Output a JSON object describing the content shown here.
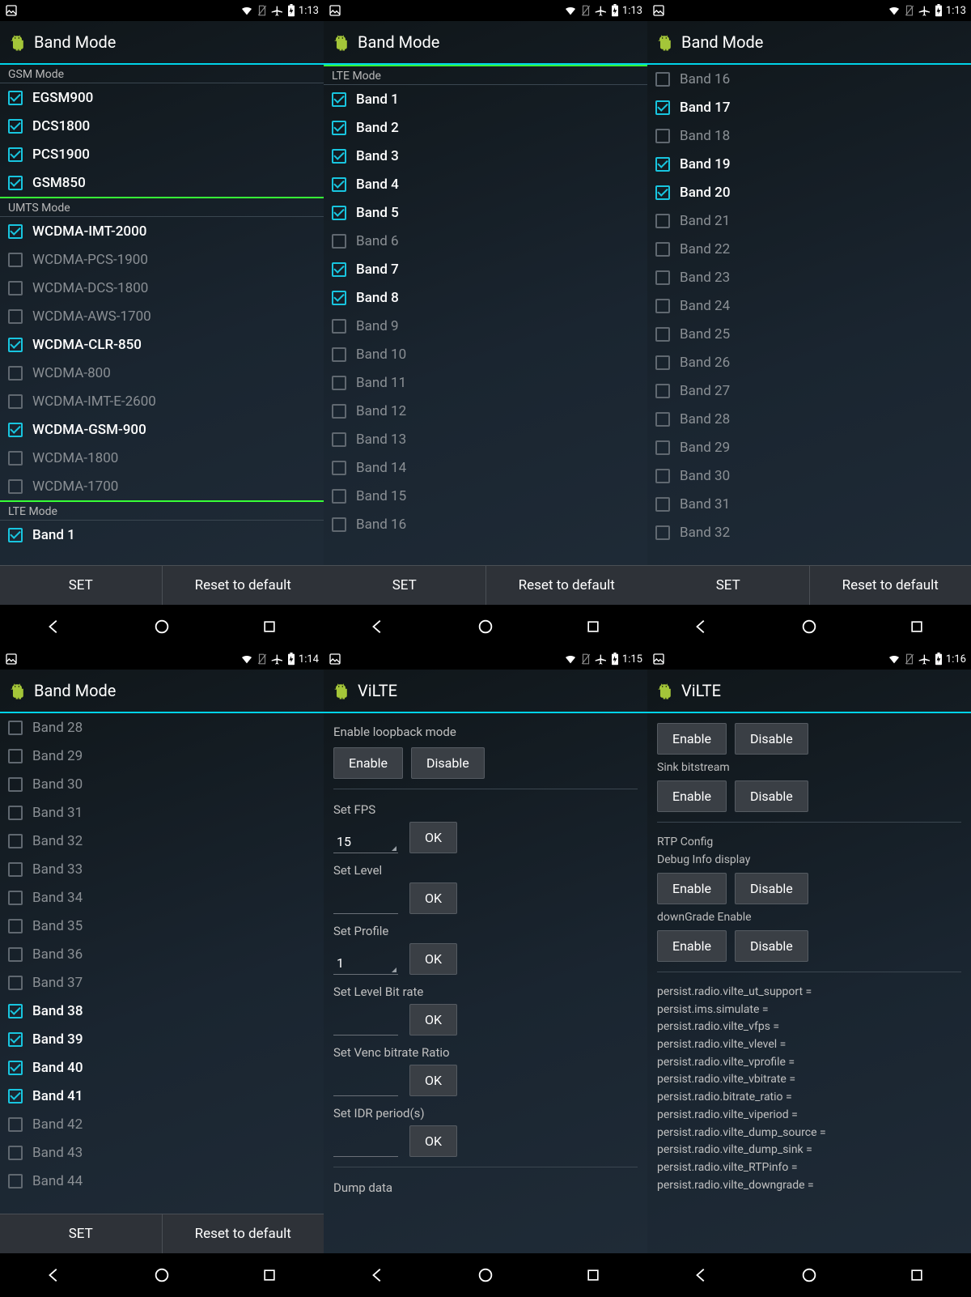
{
  "colors": {
    "accent": "#00d3e8",
    "green_divider": "#37ff37",
    "checkbox_checked": "#18c5df",
    "bg_gradient_start": "#0f1518",
    "bg_gradient_end": "#202c38",
    "button_bg": "#3a3f45"
  },
  "status": {
    "time1": "1:13",
    "time2": "1:14",
    "time3": "1:15",
    "time4": "1:16"
  },
  "titles": {
    "band_mode": "Band Mode",
    "vilte": "ViLTE"
  },
  "buttons": {
    "set": "SET",
    "reset": "Reset to default",
    "enable": "Enable",
    "disable": "Disable",
    "ok": "OK"
  },
  "screen1": {
    "sections": [
      {
        "header": "GSM Mode",
        "green_top": false,
        "items": [
          {
            "label": "EGSM900",
            "checked": true
          },
          {
            "label": "DCS1800",
            "checked": true
          },
          {
            "label": "PCS1900",
            "checked": true
          },
          {
            "label": "GSM850",
            "checked": true
          }
        ]
      },
      {
        "header": "UMTS Mode",
        "green_top": true,
        "items": [
          {
            "label": "WCDMA-IMT-2000",
            "checked": true
          },
          {
            "label": "WCDMA-PCS-1900",
            "checked": false
          },
          {
            "label": "WCDMA-DCS-1800",
            "checked": false
          },
          {
            "label": "WCDMA-AWS-1700",
            "checked": false
          },
          {
            "label": "WCDMA-CLR-850",
            "checked": true
          },
          {
            "label": "WCDMA-800",
            "checked": false
          },
          {
            "label": "WCDMA-IMT-E-2600",
            "checked": false
          },
          {
            "label": "WCDMA-GSM-900",
            "checked": true
          },
          {
            "label": "WCDMA-1800",
            "checked": false
          },
          {
            "label": "WCDMA-1700",
            "checked": false
          }
        ]
      },
      {
        "header": "LTE Mode",
        "green_top": true,
        "items": [
          {
            "label": "Band 1",
            "checked": true
          }
        ]
      }
    ]
  },
  "screen2": {
    "sections": [
      {
        "header": "LTE Mode",
        "green_top": true,
        "items": [
          {
            "label": "Band 1",
            "checked": true
          },
          {
            "label": "Band 2",
            "checked": true
          },
          {
            "label": "Band 3",
            "checked": true
          },
          {
            "label": "Band 4",
            "checked": true
          },
          {
            "label": "Band 5",
            "checked": true
          },
          {
            "label": "Band 6",
            "checked": false
          },
          {
            "label": "Band 7",
            "checked": true
          },
          {
            "label": "Band 8",
            "checked": true
          },
          {
            "label": "Band 9",
            "checked": false
          },
          {
            "label": "Band 10",
            "checked": false
          },
          {
            "label": "Band 11",
            "checked": false
          },
          {
            "label": "Band 12",
            "checked": false
          },
          {
            "label": "Band 13",
            "checked": false
          },
          {
            "label": "Band 14",
            "checked": false
          },
          {
            "label": "Band 15",
            "checked": false
          },
          {
            "label": "Band 16",
            "checked": false
          }
        ]
      }
    ]
  },
  "screen3": {
    "items": [
      {
        "label": "Band 16",
        "checked": false
      },
      {
        "label": "Band 17",
        "checked": true
      },
      {
        "label": "Band 18",
        "checked": false
      },
      {
        "label": "Band 19",
        "checked": true
      },
      {
        "label": "Band 20",
        "checked": true
      },
      {
        "label": "Band 21",
        "checked": false
      },
      {
        "label": "Band 22",
        "checked": false
      },
      {
        "label": "Band 23",
        "checked": false
      },
      {
        "label": "Band 24",
        "checked": false
      },
      {
        "label": "Band 25",
        "checked": false
      },
      {
        "label": "Band 26",
        "checked": false
      },
      {
        "label": "Band 27",
        "checked": false
      },
      {
        "label": "Band 28",
        "checked": false
      },
      {
        "label": "Band 29",
        "checked": false
      },
      {
        "label": "Band 30",
        "checked": false
      },
      {
        "label": "Band 31",
        "checked": false
      },
      {
        "label": "Band 32",
        "checked": false
      }
    ]
  },
  "screen4": {
    "items": [
      {
        "label": "Band 28",
        "checked": false
      },
      {
        "label": "Band 29",
        "checked": false
      },
      {
        "label": "Band 30",
        "checked": false
      },
      {
        "label": "Band 31",
        "checked": false
      },
      {
        "label": "Band 32",
        "checked": false
      },
      {
        "label": "Band 33",
        "checked": false
      },
      {
        "label": "Band 34",
        "checked": false
      },
      {
        "label": "Band 35",
        "checked": false
      },
      {
        "label": "Band 36",
        "checked": false
      },
      {
        "label": "Band 37",
        "checked": false
      },
      {
        "label": "Band 38",
        "checked": true
      },
      {
        "label": "Band 39",
        "checked": true
      },
      {
        "label": "Band 40",
        "checked": true
      },
      {
        "label": "Band 41",
        "checked": true
      },
      {
        "label": "Band 42",
        "checked": false
      },
      {
        "label": "Band 43",
        "checked": false
      },
      {
        "label": "Band 44",
        "checked": false
      }
    ]
  },
  "screen5": {
    "loopback_label": "Enable loopback mode",
    "set_fps": "Set FPS",
    "fps_value": "15",
    "set_level": "Set Level",
    "set_profile": "Set Profile",
    "profile_value": "1",
    "set_level_bitrate": "Set Level Bit rate",
    "set_venc_ratio": "Set Venc bitrate Ratio",
    "set_idr": "Set IDR period(s)",
    "dump_data": "Dump data"
  },
  "screen6": {
    "sink_bitstream": "Sink bitstream",
    "rtp_config": "RTP Config",
    "debug_info": "Debug Info display",
    "downgrade": "downGrade Enable",
    "persist": [
      "persist.radio.vilte_ut_support =",
      "persist.ims.simulate =",
      "persist.radio.vilte_vfps =",
      "persist.radio.vilte_vlevel =",
      "persist.radio.vilte_vprofile =",
      "persist.radio.vilte_vbitrate =",
      "persist.radio.bitrate_ratio =",
      "persist.radio.vilte_viperiod =",
      "persist.radio.vilte_dump_source =",
      "persist.radio.vilte_dump_sink =",
      "persist.radio.vilte_RTPinfo =",
      "persist.radio.vilte_downgrade ="
    ]
  }
}
